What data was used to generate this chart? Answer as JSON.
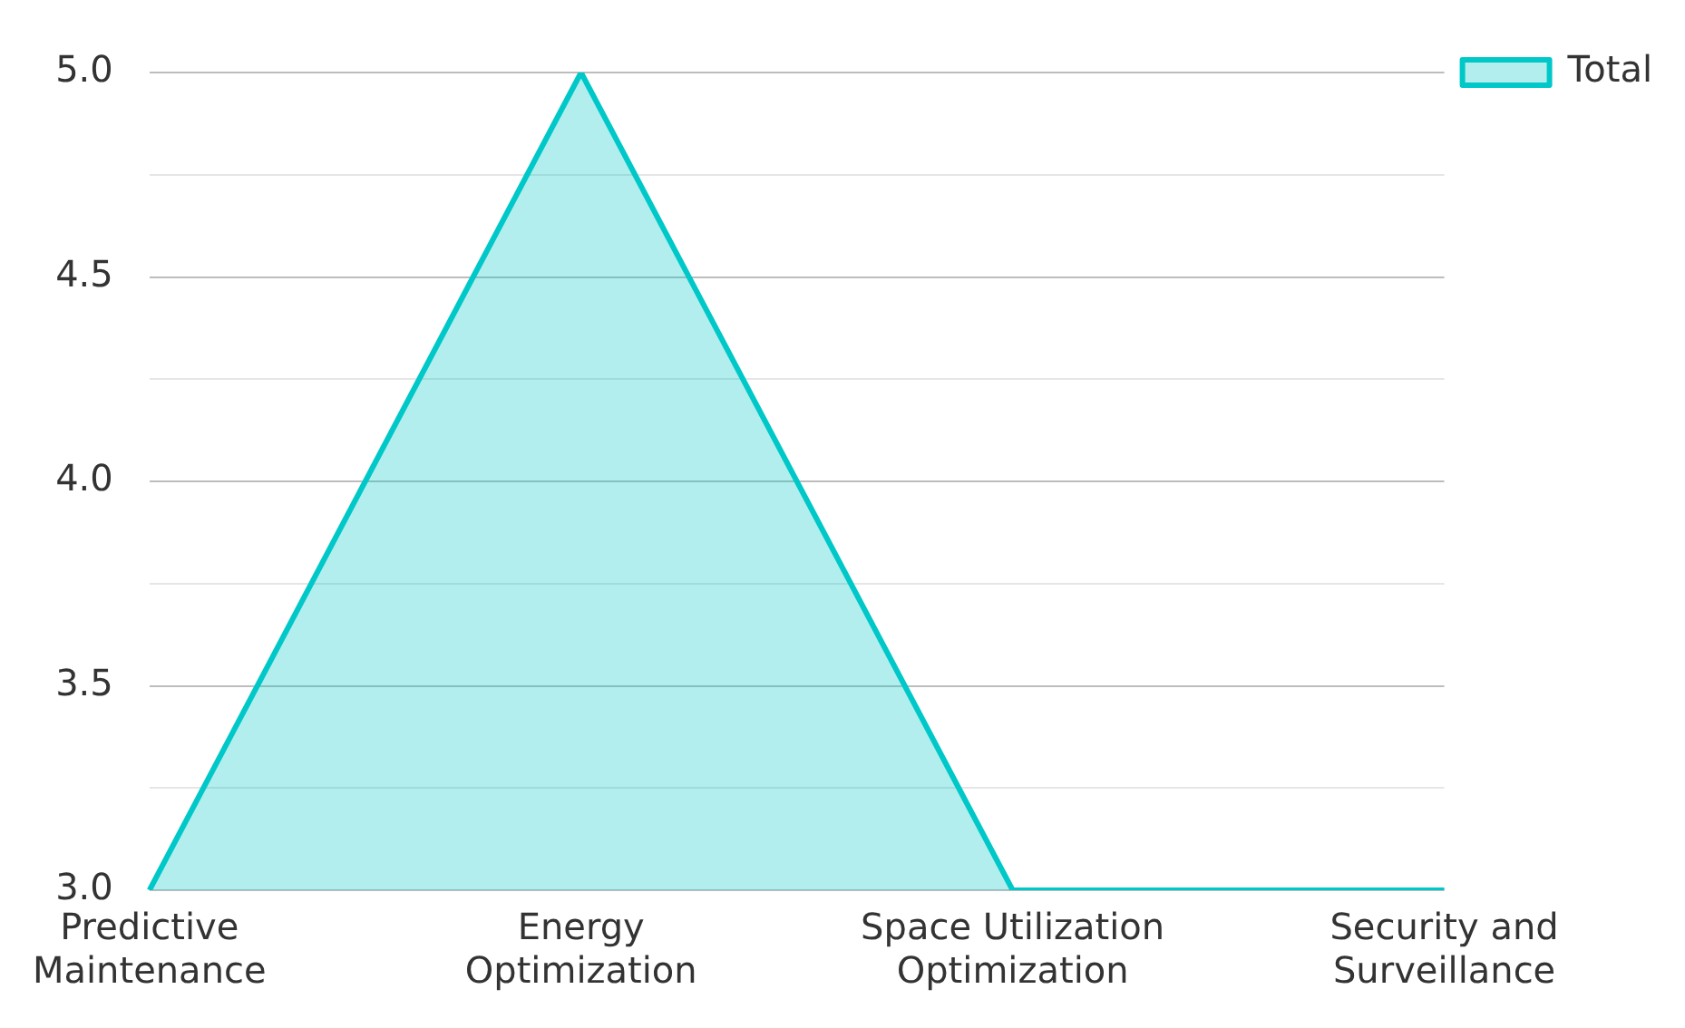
{
  "chart_data": {
    "type": "area",
    "categories": [
      "Predictive Maintenance",
      "Energy Optimization",
      "Space Utilization Optimization",
      "Security and Surveillance"
    ],
    "series": [
      {
        "name": "Total",
        "color": "#00c8c8",
        "values": [
          3,
          5,
          3,
          3
        ]
      }
    ],
    "ylim": [
      3,
      5
    ],
    "yticks": [
      {
        "value": 3,
        "label": "3.0"
      },
      {
        "value": 3.25,
        "label": null
      },
      {
        "value": 3.5,
        "label": "3.5"
      },
      {
        "value": 3.75,
        "label": null
      },
      {
        "value": 4,
        "label": "4.0"
      },
      {
        "value": 4.25,
        "label": null
      },
      {
        "value": 4.5,
        "label": "4.5"
      },
      {
        "value": 4.75,
        "label": null
      },
      {
        "value": 5,
        "label": "5.0"
      }
    ],
    "grid": "y",
    "legend": "top right",
    "marker": "none"
  }
}
